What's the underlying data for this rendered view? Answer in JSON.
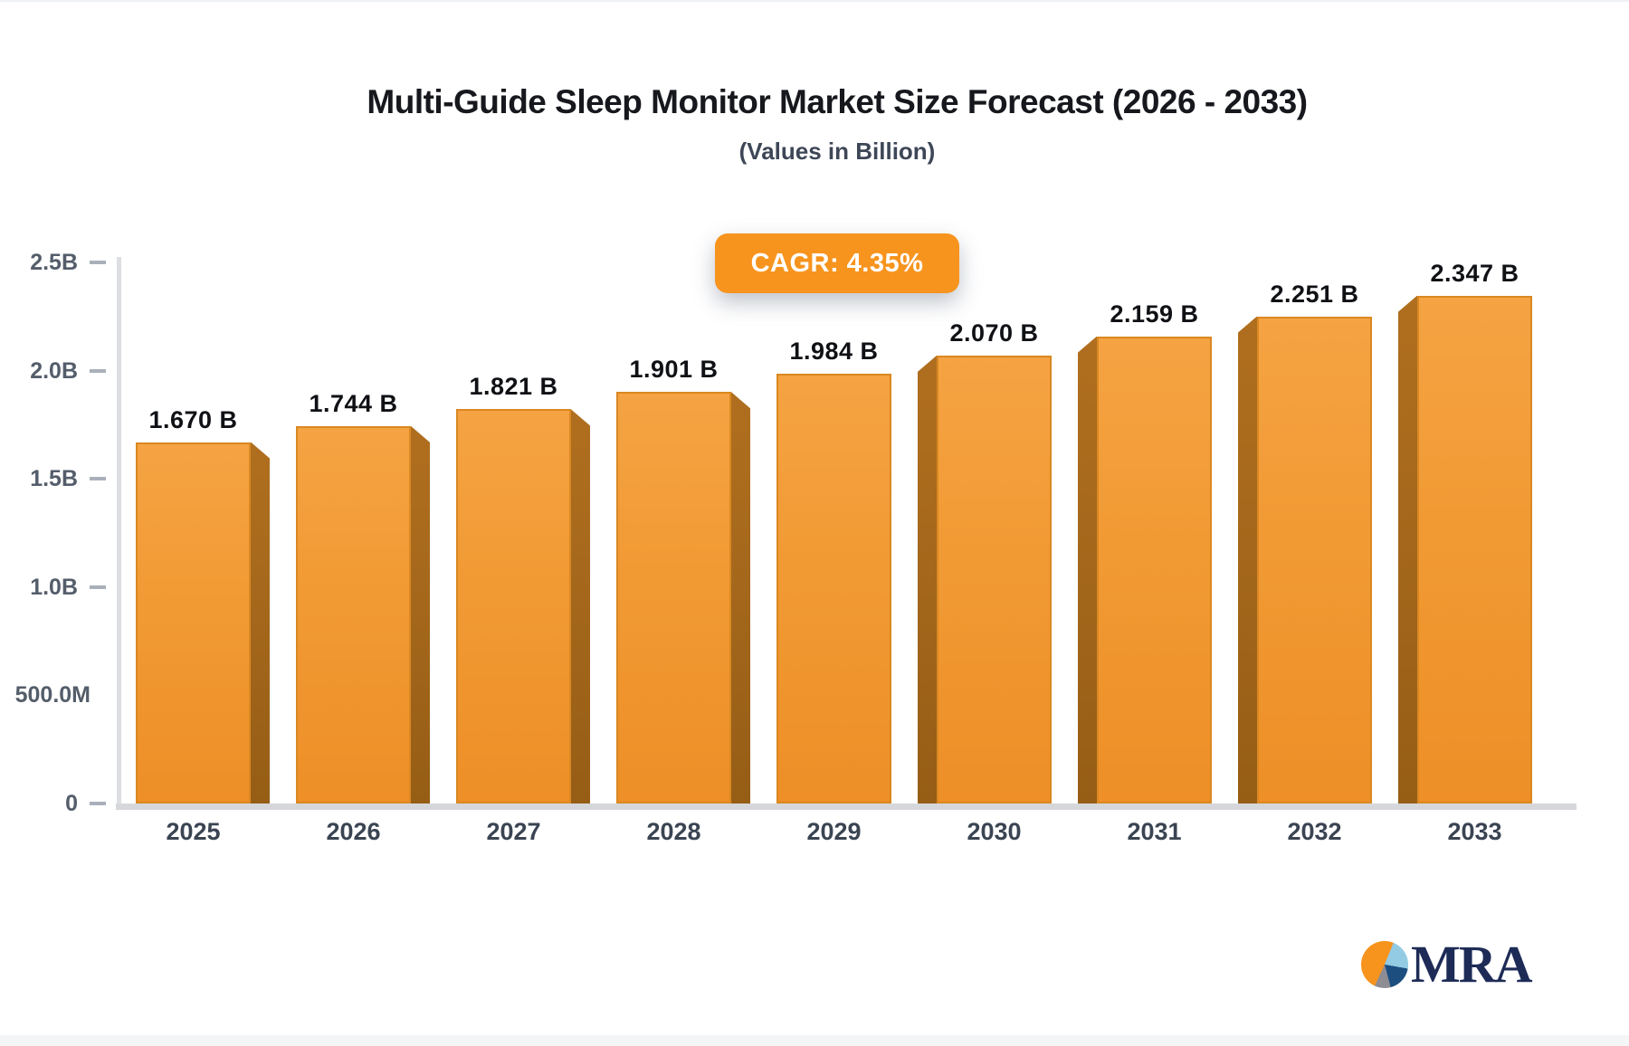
{
  "title": "Multi-Guide Sleep Monitor Market Size Forecast (2026 - 2033)",
  "subtitle": "(Values in Billion)",
  "badge": {
    "label": "CAGR: 4.35%"
  },
  "logo": {
    "text": "MRA"
  },
  "colors": {
    "bar_face_top": "#f5a343",
    "bar_face_bottom": "#ee8f27",
    "bar_border": "#da8822",
    "bar_side": "#a8691c",
    "badge_bg": "#f7941e",
    "axis_gray": "#d6d7db",
    "tick_gray": "#a9b0ba",
    "label_dark": "#0f1115",
    "year_label": "#3a4452",
    "logo_navy": "#1d2b56",
    "logo_pie_orange": "#f7941e",
    "logo_pie_lightblue": "#93cbe4",
    "logo_pie_navy": "#1c4e80",
    "logo_pie_gray": "#8d8d93"
  },
  "chart_data": {
    "type": "bar",
    "title": "Multi-Guide Sleep Monitor Market Size Forecast (2026 - 2033)",
    "subtitle": "(Values in Billion)",
    "cagr": "4.35%",
    "categories": [
      "2025",
      "2026",
      "2027",
      "2028",
      "2029",
      "2030",
      "2031",
      "2032",
      "2033"
    ],
    "values": [
      1.67,
      1.744,
      1.821,
      1.901,
      1.984,
      2.07,
      2.159,
      2.251,
      2.347
    ],
    "value_labels": [
      "1.670 B",
      "1.744 B",
      "1.821 B",
      "1.901 B",
      "1.984 B",
      "2.070 B",
      "2.159 B",
      "2.251 B",
      "2.347 B"
    ],
    "unit": "Billion USD",
    "xlabel": "",
    "ylabel": "",
    "ylim": [
      0,
      2.5
    ],
    "grid": false,
    "legend": "none",
    "y_ticks": [
      {
        "label": "2.5B",
        "value": 2.5,
        "tick": true
      },
      {
        "label": "2.0B",
        "value": 2.0,
        "tick": true
      },
      {
        "label": "1.5B",
        "value": 1.5,
        "tick": true
      },
      {
        "label": "1.0B",
        "value": 1.0,
        "tick": true
      },
      {
        "label": "500.0M",
        "value": 0.5,
        "tick": false
      },
      {
        "label": "0",
        "value": 0.0,
        "tick": true
      }
    ]
  }
}
